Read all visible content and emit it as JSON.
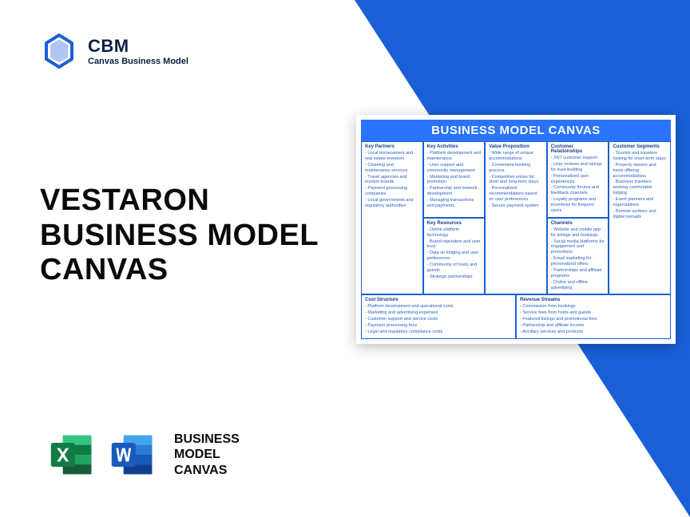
{
  "logo": {
    "title": "CBM",
    "subtitle": "Canvas Business Model"
  },
  "mainTitle": "VESTARON\nBUSINESS MODEL\nCANVAS",
  "bottomLabel": "BUSINESS\nMODEL\nCANVAS",
  "colors": {
    "brandBlue": "#1a5fd8",
    "accentBlue": "#2a74ff",
    "textBlue": "#2a5fc0",
    "titleBlue": "#1a3f8a",
    "dark": "#0a1f44",
    "excelGreen": "#107c41",
    "excelLight": "#21a366",
    "wordBlue": "#185abd",
    "wordLight": "#41a5ee"
  },
  "canvas": {
    "header": "BUSINESS MODEL CANVAS",
    "sections": {
      "keyPartners": {
        "title": "Key Partners",
        "items": [
          "Local homeowners and real estate investors",
          "Cleaning and maintenance services",
          "Travel agencies and tourism boards",
          "Payment processing companies",
          "Local governments and regulatory authorities"
        ]
      },
      "keyActivities": {
        "title": "Key Activities",
        "items": [
          "Platform development and maintenance",
          "User support and community management",
          "Marketing and brand promotion",
          "Partnership and network development",
          "Managing transactions and payments"
        ]
      },
      "keyResources": {
        "title": "Key Resources",
        "items": [
          "Online platform technology",
          "Brand reputation and user trust",
          "Data on lodging and user preferences",
          "Community of hosts and guests",
          "Strategic partnerships"
        ]
      },
      "valueProp": {
        "title": "Value Proposition",
        "items": [
          "Wide range of unique accommodations",
          "Convenient booking process",
          "Competitive prices for short and long-term stays",
          "Personalized recommendations based on user preferences",
          "Secure payment system"
        ]
      },
      "custRel": {
        "title": "Customer Relationships",
        "items": [
          "24/7 customer support",
          "User reviews and ratings for trust-building",
          "Personalized user experiences",
          "Community forums and feedback channels",
          "Loyalty programs and incentives for frequent users"
        ]
      },
      "channels": {
        "title": "Channels",
        "items": [
          "Website and mobile app for listings and bookings",
          "Social media platforms for engagement and promotions",
          "Email marketing for personalized offers",
          "Partnerships and affiliate programs",
          "Online and offline advertising"
        ]
      },
      "custSeg": {
        "title": "Customer Segments",
        "items": [
          "Tourists and travelers looking for short-term stays",
          "Property owners and hosts offering accommodations",
          "Business travelers seeking comfortable lodging",
          "Event planners and organizations",
          "Remote workers and digital nomads"
        ]
      },
      "cost": {
        "title": "Cost Structure",
        "items": [
          "Platform development and operational costs",
          "Marketing and advertising expenses",
          "Customer support and service costs",
          "Payment processing fees",
          "Legal and regulatory compliance costs"
        ]
      },
      "revenue": {
        "title": "Revenue Streams",
        "items": [
          "Commission from bookings",
          "Service fees from hosts and guests",
          "Featured listings and promotional fees",
          "Partnership and affiliate income",
          "Ancillary services and products"
        ]
      }
    }
  }
}
